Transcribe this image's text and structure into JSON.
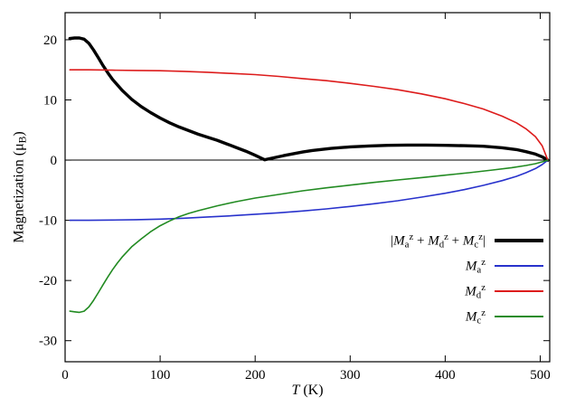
{
  "chart_data": {
    "type": "line",
    "title": "",
    "xlabel": "T (K)",
    "ylabel": "Magnetization (μB)",
    "xlabel_segments": [
      [
        "T",
        "i"
      ],
      [
        " (K)",
        ""
      ]
    ],
    "ylabel_segments": [
      [
        "Magnetization (",
        ""
      ],
      [
        "μ",
        ""
      ],
      [
        "B",
        "sub"
      ],
      [
        ")",
        ""
      ]
    ],
    "xlim": [
      0,
      510
    ],
    "ylim": [
      -33.5,
      24.5
    ],
    "xticks": [
      0,
      100,
      200,
      300,
      400,
      500
    ],
    "yticks": [
      -30,
      -20,
      -10,
      0,
      10,
      20
    ],
    "zero_line_y": 0,
    "grid": false,
    "axis_color": "#000000",
    "legend_position": "inside bottom-right",
    "series": [
      {
        "name": "total",
        "label": "|Ma^z + Md^z + Mc^z|",
        "label_segments": [
          [
            "|",
            ""
          ],
          [
            "M",
            "i"
          ],
          [
            "a",
            "sub"
          ],
          [
            "z",
            "sup"
          ],
          [
            " + ",
            ""
          ],
          [
            "M",
            "i"
          ],
          [
            "d",
            "sub"
          ],
          [
            "z",
            "sup"
          ],
          [
            " + ",
            ""
          ],
          [
            "M",
            "i"
          ],
          [
            "c",
            "sub"
          ],
          [
            "z",
            "sup"
          ],
          [
            "|",
            ""
          ]
        ],
        "color": "#000000",
        "line_width": 3.4,
        "x": [
          5,
          10,
          15,
          20,
          25,
          30,
          35,
          40,
          45,
          50,
          60,
          70,
          80,
          90,
          100,
          110,
          120,
          130,
          140,
          150,
          160,
          170,
          180,
          190,
          200,
          210,
          220,
          230,
          240,
          250,
          260,
          280,
          300,
          320,
          340,
          360,
          380,
          400,
          420,
          440,
          460,
          475,
          485,
          495,
          502,
          508
        ],
        "y": [
          20.2,
          20.3,
          20.3,
          20.1,
          19.4,
          18.3,
          17.0,
          15.7,
          14.5,
          13.4,
          11.6,
          10.1,
          8.9,
          7.9,
          7.0,
          6.2,
          5.5,
          4.9,
          4.3,
          3.8,
          3.3,
          2.7,
          2.1,
          1.5,
          0.8,
          0.05,
          0.4,
          0.75,
          1.05,
          1.35,
          1.6,
          1.95,
          2.2,
          2.35,
          2.45,
          2.5,
          2.5,
          2.45,
          2.4,
          2.3,
          2.05,
          1.75,
          1.4,
          1.0,
          0.55,
          0.0
        ]
      },
      {
        "name": "Ma",
        "label": "Ma^z",
        "label_segments": [
          [
            "M",
            "i"
          ],
          [
            "a",
            "sub"
          ],
          [
            "z",
            "sup"
          ]
        ],
        "color": "#2832cc",
        "line_width": 1.6,
        "x": [
          5,
          25,
          50,
          75,
          100,
          125,
          150,
          175,
          200,
          225,
          250,
          275,
          300,
          325,
          350,
          375,
          400,
          420,
          440,
          460,
          475,
          485,
          495,
          502,
          508
        ],
        "y": [
          -10.0,
          -10.0,
          -9.95,
          -9.9,
          -9.8,
          -9.65,
          -9.45,
          -9.25,
          -9.0,
          -8.75,
          -8.45,
          -8.1,
          -7.7,
          -7.25,
          -6.75,
          -6.15,
          -5.5,
          -4.9,
          -4.2,
          -3.4,
          -2.7,
          -2.1,
          -1.4,
          -0.75,
          0.0
        ]
      },
      {
        "name": "Md",
        "label": "Md^z",
        "label_segments": [
          [
            "M",
            "i"
          ],
          [
            "d",
            "sub"
          ],
          [
            "z",
            "sup"
          ]
        ],
        "color": "#dd1c1c",
        "line_width": 1.6,
        "x": [
          5,
          25,
          50,
          75,
          100,
          125,
          150,
          175,
          200,
          225,
          250,
          275,
          300,
          325,
          350,
          375,
          400,
          420,
          440,
          460,
          475,
          485,
          495,
          502,
          508
        ],
        "y": [
          15.0,
          15.0,
          14.95,
          14.9,
          14.85,
          14.75,
          14.6,
          14.4,
          14.2,
          13.9,
          13.55,
          13.2,
          12.75,
          12.25,
          11.7,
          11.0,
          10.2,
          9.4,
          8.5,
          7.3,
          6.2,
          5.2,
          3.9,
          2.4,
          0.0
        ]
      },
      {
        "name": "Mc",
        "label": "Mc^z",
        "label_segments": [
          [
            "M",
            "i"
          ],
          [
            "c",
            "sub"
          ],
          [
            "z",
            "sup"
          ]
        ],
        "color": "#228b22",
        "line_width": 1.6,
        "x": [
          5,
          10,
          15,
          20,
          25,
          30,
          35,
          40,
          45,
          50,
          55,
          60,
          70,
          80,
          90,
          100,
          110,
          120,
          130,
          140,
          160,
          180,
          200,
          225,
          250,
          275,
          300,
          325,
          350,
          375,
          400,
          425,
          450,
          470,
          485,
          495,
          502,
          508
        ],
        "y": [
          -25.1,
          -25.2,
          -25.3,
          -25.1,
          -24.4,
          -23.3,
          -22.0,
          -20.7,
          -19.4,
          -18.2,
          -17.1,
          -16.1,
          -14.4,
          -13.1,
          -11.9,
          -10.9,
          -10.1,
          -9.4,
          -8.85,
          -8.4,
          -7.6,
          -6.9,
          -6.3,
          -5.7,
          -5.1,
          -4.6,
          -4.15,
          -3.7,
          -3.3,
          -2.9,
          -2.5,
          -2.1,
          -1.65,
          -1.25,
          -0.9,
          -0.6,
          -0.3,
          0.0
        ]
      }
    ]
  }
}
